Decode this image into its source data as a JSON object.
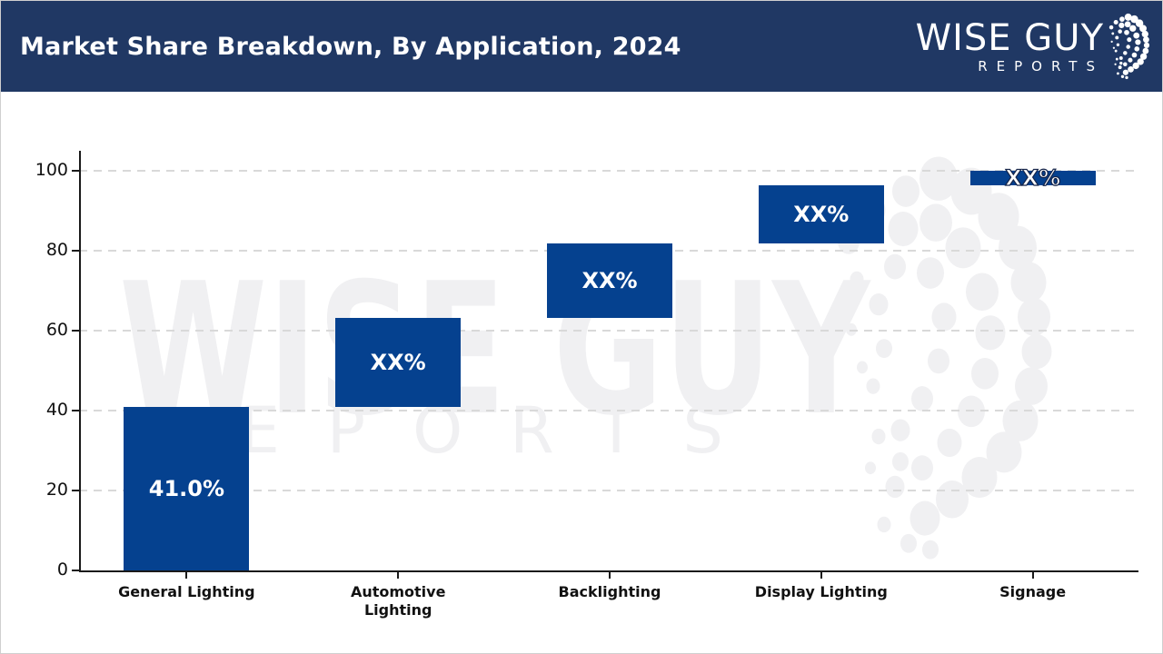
{
  "colors": {
    "header_bg": "#203864",
    "bar": "#05418F",
    "gridline": "#d9d9d9",
    "axis": "#1a1a1a",
    "watermark": "#f0f0f2",
    "title_text": "#ffffff"
  },
  "header": {
    "title": "Market Share Breakdown, By Application, 2024",
    "logo": {
      "line1": "WISE GUY",
      "line2": "REPORTS"
    }
  },
  "watermark": {
    "line1": "WISE GUY",
    "line2": "REPORTS"
  },
  "chart_data": {
    "type": "bar",
    "subtype": "waterfall",
    "title": "Market Share Breakdown, By Application, 2024",
    "categories": [
      "General Lighting",
      "Automotive Lighting",
      "Backlighting",
      "Display Lighting",
      "Signage"
    ],
    "values": [
      41.0,
      22.2,
      18.6,
      14.6,
      3.6
    ],
    "segments": [
      {
        "category": "General Lighting",
        "start": 0,
        "end": 41.0,
        "label": "41.0%"
      },
      {
        "category": "Automotive Lighting",
        "start": 41.0,
        "end": 63.2,
        "label": "XX%"
      },
      {
        "category": "Backlighting",
        "start": 63.2,
        "end": 81.8,
        "label": "XX%"
      },
      {
        "category": "Display Lighting",
        "start": 81.8,
        "end": 96.4,
        "label": "XX%"
      },
      {
        "category": "Signage",
        "start": 96.4,
        "end": 100.0,
        "label": "XX%"
      }
    ],
    "bar_labels": [
      "41.0%",
      "XX%",
      "XX%",
      "XX%",
      "XX%"
    ],
    "ylim": [
      0,
      100
    ],
    "yticks": [
      0,
      20,
      40,
      60,
      80,
      100
    ],
    "grid": "horizontal-dashed",
    "legend": "none",
    "xlabel": "",
    "ylabel": "",
    "bar_color": "#05418F"
  }
}
